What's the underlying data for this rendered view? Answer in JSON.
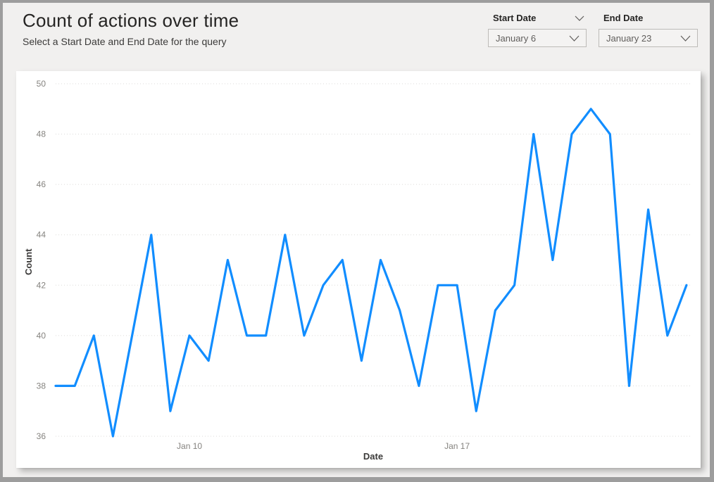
{
  "header": {
    "title": "Count of actions over time",
    "subtitle": "Select a Start Date and End Date for the query"
  },
  "slicers": {
    "start": {
      "label": "Start Date",
      "value": "January 6"
    },
    "end": {
      "label": "End Date",
      "value": "January 23"
    }
  },
  "chart_data": {
    "type": "line",
    "title": "Count of actions over time",
    "xlabel": "Date",
    "ylabel": "Count",
    "ylim": [
      36,
      50
    ],
    "yticks": [
      36,
      38,
      40,
      42,
      44,
      46,
      48,
      50
    ],
    "xlim_days_january": [
      6.5,
      23.1
    ],
    "xticks": [
      {
        "day": 10,
        "label": "Jan 10"
      },
      {
        "day": 17,
        "label": "Jan 17"
      }
    ],
    "grid": "horizontal-dotted",
    "legend": "none",
    "series": [
      {
        "name": "Count",
        "color": "#118DFF",
        "x_days_january": [
          6.5,
          7,
          7.5,
          8,
          8.5,
          9,
          9.5,
          10,
          10.5,
          11,
          11.5,
          12,
          12.5,
          13,
          13.5,
          14,
          14.5,
          15,
          15.5,
          16,
          16.5,
          17,
          17.5,
          18,
          18.5,
          19,
          19.5,
          20,
          20.5,
          21,
          21.5,
          22,
          22.5,
          23
        ],
        "values": [
          38,
          38,
          40,
          36,
          40,
          44,
          37,
          40,
          39,
          43,
          40,
          40,
          44,
          40,
          42,
          43,
          39,
          43,
          41,
          38,
          42,
          42,
          37,
          41,
          42,
          48,
          43,
          48,
          49,
          48,
          38,
          45,
          40,
          42
        ]
      }
    ]
  },
  "colors": {
    "line": "#118DFF",
    "page_background": "#F1F0EF",
    "card_background": "#FFFFFF",
    "window_border": "#9D9D9D",
    "axis_text": "#85837F",
    "title_text": "#252423"
  }
}
